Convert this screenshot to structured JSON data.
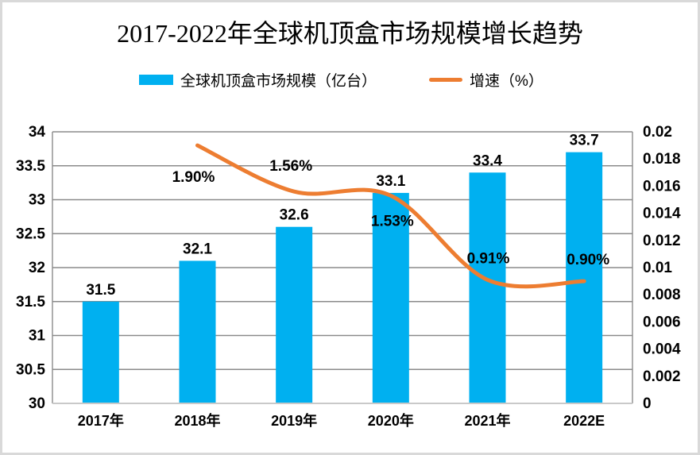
{
  "chart_data": {
    "type": "bar+line",
    "title": "2017-2022年全球机顶盒市场规模增长趋势",
    "categories": [
      "2017年",
      "2018年",
      "2019年",
      "2020年",
      "2021年",
      "2022E"
    ],
    "series": [
      {
        "name": "全球机顶盒市场规模（亿台）",
        "type": "bar",
        "axis": "left",
        "color": "#00B0F0",
        "values": [
          31.5,
          32.1,
          32.6,
          33.1,
          33.4,
          33.7
        ],
        "labels": [
          "31.5",
          "32.1",
          "32.6",
          "33.1",
          "33.4",
          "33.7"
        ]
      },
      {
        "name": "增速（%）",
        "type": "line",
        "axis": "right",
        "color": "#ED7D31",
        "values": [
          null,
          0.019,
          0.0156,
          0.0153,
          0.0091,
          0.009
        ],
        "labels": [
          null,
          "1.90%",
          "1.56%",
          "1.53%",
          "0.91%",
          "0.90%"
        ]
      }
    ],
    "left_axis": {
      "min": 30,
      "max": 34,
      "ticks": [
        "30",
        "30.5",
        "31",
        "31.5",
        "32",
        "32.5",
        "33",
        "33.5",
        "34"
      ]
    },
    "right_axis": {
      "min": 0,
      "max": 0.02,
      "ticks": [
        "0",
        "0.002",
        "0.004",
        "0.006",
        "0.008",
        "0.01",
        "0.012",
        "0.014",
        "0.016",
        "0.018",
        "0.02"
      ]
    },
    "grid": true,
    "legend_position": "top",
    "colors": {
      "bar": "#00B0F0",
      "line": "#ED7D31",
      "gridline": "#8B8B8B",
      "baseline": "#C9C9C9",
      "text": "#000000"
    }
  }
}
